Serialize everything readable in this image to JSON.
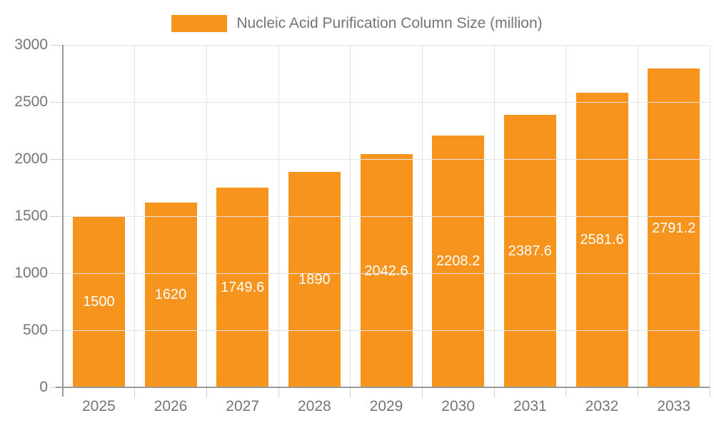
{
  "legend": {
    "label": "Nucleic Acid Purification Column Size (million)"
  },
  "colors": {
    "bar": "#f6941e",
    "axis_line": "#9a9a9a",
    "grid_line": "#e3e3e3",
    "tick_line": "#cfcfcf",
    "axis_text": "#757575",
    "value_text": "#ffffff",
    "background": "#ffffff"
  },
  "chart_data": {
    "type": "bar",
    "title": "",
    "xlabel": "",
    "ylabel": "",
    "categories": [
      "2025",
      "2026",
      "2027",
      "2028",
      "2029",
      "2030",
      "2031",
      "2032",
      "2033"
    ],
    "series": [
      {
        "name": "Nucleic Acid Purification Column Size (million)",
        "values": [
          1500,
          1620,
          1749.6,
          1890,
          2042.6,
          2208.2,
          2387.6,
          2581.6,
          2791.2
        ]
      }
    ],
    "value_labels": [
      "1500",
      "1620",
      "1749.6",
      "1890",
      "2042.6",
      "2208.2",
      "2387.6",
      "2581.6",
      "2791.2"
    ],
    "ylim": [
      0,
      3000
    ],
    "yticks": [
      0,
      500,
      1000,
      1500,
      2000,
      2500,
      3000
    ],
    "grid": true,
    "legend_position": "top",
    "value_label_position": "center-of-bar"
  }
}
